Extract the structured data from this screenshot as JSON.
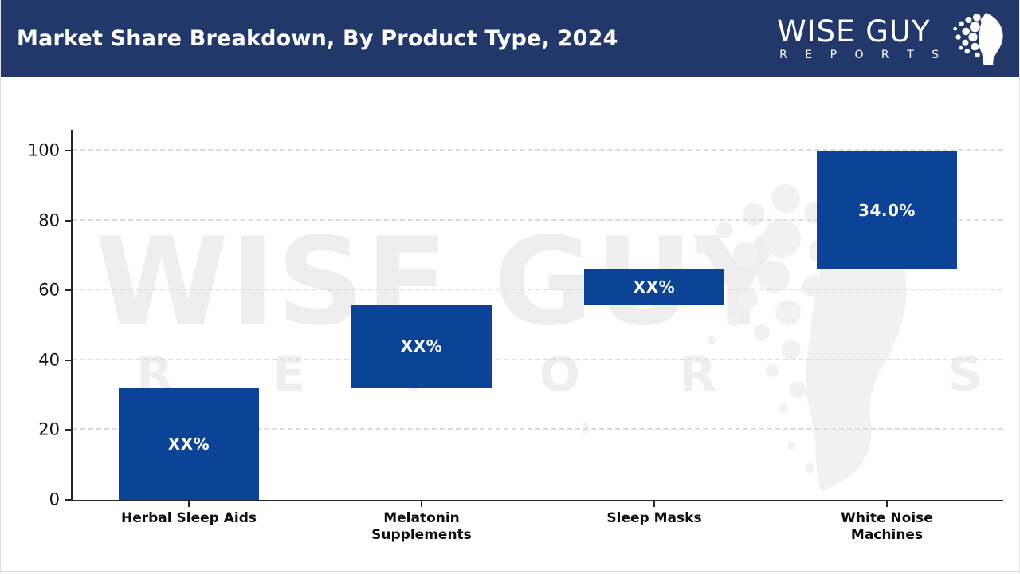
{
  "header": {
    "title": "Market Share Breakdown, By Product Type, 2024",
    "logo": {
      "name": "Wise Guy Reports logo",
      "line1": "WISE GUY",
      "line2": "R E P O R T S"
    }
  },
  "watermark": {
    "line1": "WISE GUY",
    "line2": "R E P O R T S"
  },
  "chart_data": {
    "type": "bar",
    "subtype": "waterfall",
    "title": "Market Share Breakdown, By Product Type, 2024",
    "xlabel": "",
    "ylabel": "",
    "categories": [
      "Herbal Sleep Aids",
      "Melatonin\nSupplements",
      "Sleep Masks",
      "White Noise\nMachines"
    ],
    "segments": [
      {
        "category": "Herbal Sleep Aids",
        "start": 0,
        "end": 32,
        "value": 32,
        "value_label": "XX%"
      },
      {
        "category": "Melatonin Supplements",
        "start": 32,
        "end": 56,
        "value": 24,
        "value_label": "XX%"
      },
      {
        "category": "Sleep Masks",
        "start": 56,
        "end": 66,
        "value": 10,
        "value_label": "XX%"
      },
      {
        "category": "White Noise Machines",
        "start": 66,
        "end": 100,
        "value": 34.0,
        "value_label": "34.0%"
      }
    ],
    "yticks": [
      0,
      20,
      40,
      60,
      80,
      100
    ],
    "ylim": [
      0,
      106
    ],
    "grid": "horizontal-dashed",
    "legend": "none",
    "colors": {
      "bar": "#0B4397",
      "header_bg": "#22386B",
      "grid": "#dcdcdc",
      "axis": "#262626",
      "label_on_bar": "#ffffff"
    }
  }
}
